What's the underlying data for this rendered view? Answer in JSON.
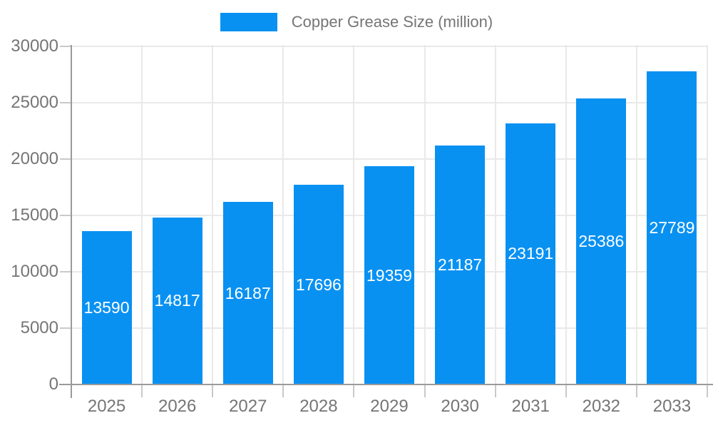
{
  "chart_data": {
    "type": "bar",
    "title": "Copper Grease Size (million)",
    "legend": {
      "position": "top",
      "entries": [
        "Copper Grease Size (million)"
      ]
    },
    "categories": [
      "2025",
      "2026",
      "2027",
      "2028",
      "2029",
      "2030",
      "2031",
      "2032",
      "2033"
    ],
    "series": [
      {
        "name": "Copper Grease Size (million)",
        "values": [
          13590,
          14817,
          16187,
          17696,
          19359,
          21187,
          23191,
          25386,
          27789
        ]
      }
    ],
    "value_labels": [
      "13590",
      "14817",
      "16187",
      "17696",
      "19359",
      "21187",
      "23191",
      "25386",
      "27789"
    ],
    "xlabel": "",
    "ylabel": "",
    "ylim": [
      0,
      30000
    ],
    "yticks": [
      0,
      5000,
      10000,
      15000,
      20000,
      25000,
      30000
    ],
    "ytick_labels": [
      "0",
      "5000",
      "10000",
      "15000",
      "20000",
      "25000",
      "30000"
    ],
    "grid": true,
    "value_label_position": "inside-center",
    "colors": {
      "bar": "#0991f2",
      "axis_line": "#9a9a9a",
      "gridline": "#e9e9e9",
      "tick_stub": "#c9c9c9",
      "axis_text": "#757575",
      "value_text": "#ffffff",
      "background": "#ffffff"
    }
  }
}
